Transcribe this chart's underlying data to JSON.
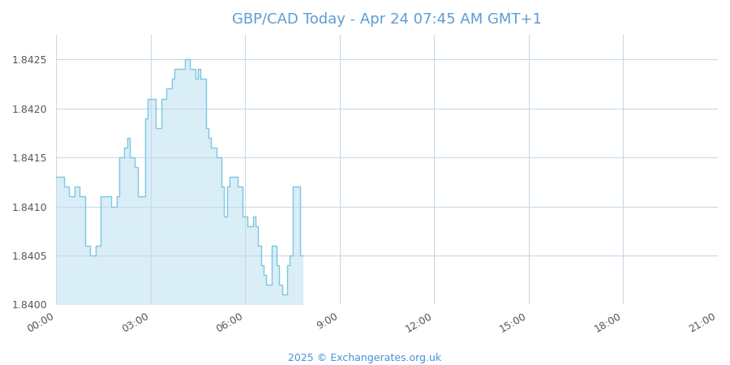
{
  "title": "GBP/CAD Today - Apr 24 07:45 AM GMT+1",
  "title_color": "#5b9bd5",
  "footer": "2025 © Exchangerates.org.uk",
  "footer_color": "#4a90d9",
  "background_color": "#ffffff",
  "plot_background": "#ffffff",
  "line_color": "#7ec8e3",
  "fill_color": "#daeef8",
  "grid_color": "#c8d8e8",
  "ylim": [
    1.84,
    1.84275
  ],
  "yticks": [
    1.84,
    1.8405,
    1.841,
    1.8415,
    1.842,
    1.8425
  ],
  "xtick_labels": [
    "00:00",
    "03:00",
    "06:00",
    "9:00",
    "12:00",
    "15:00",
    "18:00",
    "21:00"
  ],
  "xtick_positions": [
    0,
    180,
    360,
    540,
    720,
    900,
    1080,
    1260
  ],
  "total_minutes": 1260,
  "time_series": [
    [
      0,
      1.8413
    ],
    [
      10,
      1.8413
    ],
    [
      15,
      1.8412
    ],
    [
      20,
      1.8412
    ],
    [
      25,
      1.8411
    ],
    [
      30,
      1.8411
    ],
    [
      35,
      1.8412
    ],
    [
      40,
      1.8412
    ],
    [
      45,
      1.8411
    ],
    [
      50,
      1.8411
    ],
    [
      55,
      1.8406
    ],
    [
      60,
      1.8406
    ],
    [
      65,
      1.8405
    ],
    [
      70,
      1.8405
    ],
    [
      75,
      1.8406
    ],
    [
      80,
      1.8406
    ],
    [
      85,
      1.8411
    ],
    [
      95,
      1.8411
    ],
    [
      100,
      1.8411
    ],
    [
      105,
      1.841
    ],
    [
      110,
      1.841
    ],
    [
      115,
      1.8411
    ],
    [
      120,
      1.8415
    ],
    [
      125,
      1.8415
    ],
    [
      130,
      1.8416
    ],
    [
      135,
      1.8417
    ],
    [
      140,
      1.8415
    ],
    [
      145,
      1.8415
    ],
    [
      150,
      1.8414
    ],
    [
      155,
      1.8411
    ],
    [
      160,
      1.8411
    ],
    [
      165,
      1.8411
    ],
    [
      170,
      1.8419
    ],
    [
      175,
      1.8421
    ],
    [
      180,
      1.8421
    ],
    [
      185,
      1.8421
    ],
    [
      190,
      1.8418
    ],
    [
      195,
      1.8418
    ],
    [
      200,
      1.8421
    ],
    [
      205,
      1.8421
    ],
    [
      210,
      1.8422
    ],
    [
      215,
      1.8422
    ],
    [
      220,
      1.8423
    ],
    [
      225,
      1.8424
    ],
    [
      230,
      1.8424
    ],
    [
      235,
      1.8424
    ],
    [
      240,
      1.8424
    ],
    [
      245,
      1.8425
    ],
    [
      250,
      1.8425
    ],
    [
      255,
      1.8424
    ],
    [
      260,
      1.8424
    ],
    [
      265,
      1.8423
    ],
    [
      270,
      1.8424
    ],
    [
      275,
      1.8423
    ],
    [
      280,
      1.8423
    ],
    [
      285,
      1.8418
    ],
    [
      290,
      1.8417
    ],
    [
      295,
      1.8416
    ],
    [
      300,
      1.8416
    ],
    [
      305,
      1.8415
    ],
    [
      310,
      1.8415
    ],
    [
      315,
      1.8412
    ],
    [
      320,
      1.8409
    ],
    [
      325,
      1.8412
    ],
    [
      330,
      1.8413
    ],
    [
      335,
      1.8413
    ],
    [
      340,
      1.8413
    ],
    [
      345,
      1.8412
    ],
    [
      350,
      1.8412
    ],
    [
      355,
      1.8409
    ],
    [
      360,
      1.8409
    ],
    [
      365,
      1.8408
    ],
    [
      370,
      1.8408
    ],
    [
      375,
      1.8409
    ],
    [
      380,
      1.8408
    ],
    [
      385,
      1.8406
    ],
    [
      390,
      1.8404
    ],
    [
      395,
      1.8403
    ],
    [
      400,
      1.8402
    ],
    [
      405,
      1.8402
    ],
    [
      410,
      1.8406
    ],
    [
      415,
      1.8406
    ],
    [
      420,
      1.8404
    ],
    [
      425,
      1.8402
    ],
    [
      430,
      1.8401
    ],
    [
      435,
      1.8401
    ],
    [
      440,
      1.8404
    ],
    [
      445,
      1.8405
    ],
    [
      450,
      1.8412
    ],
    [
      455,
      1.8412
    ],
    [
      460,
      1.8412
    ],
    [
      465,
      1.8405
    ],
    [
      470,
      1.8405
    ]
  ]
}
